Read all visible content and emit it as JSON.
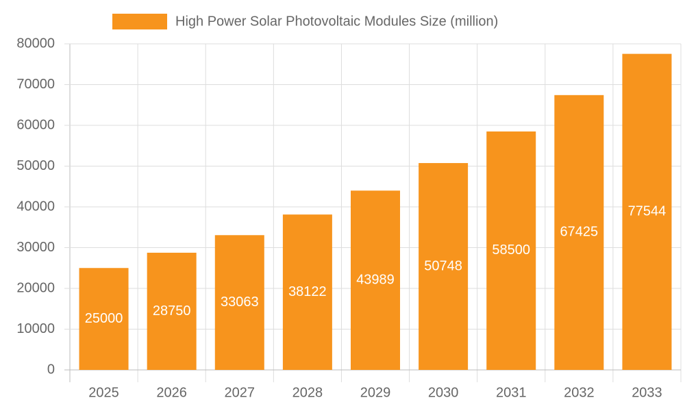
{
  "chart_data": {
    "type": "bar",
    "categories": [
      "2025",
      "2026",
      "2027",
      "2028",
      "2029",
      "2030",
      "2031",
      "2032",
      "2033"
    ],
    "series": [
      {
        "name": "High Power Solar Photovoltaic Modules Size (million)",
        "color": "#f7941d",
        "values": [
          25000,
          28750,
          33063,
          38122,
          43989,
          50748,
          58500,
          67425,
          77544
        ]
      }
    ],
    "ylim": [
      0,
      80000
    ],
    "yticks": [
      0,
      10000,
      20000,
      30000,
      40000,
      50000,
      60000,
      70000,
      80000
    ],
    "grid": true,
    "legend": "top"
  }
}
